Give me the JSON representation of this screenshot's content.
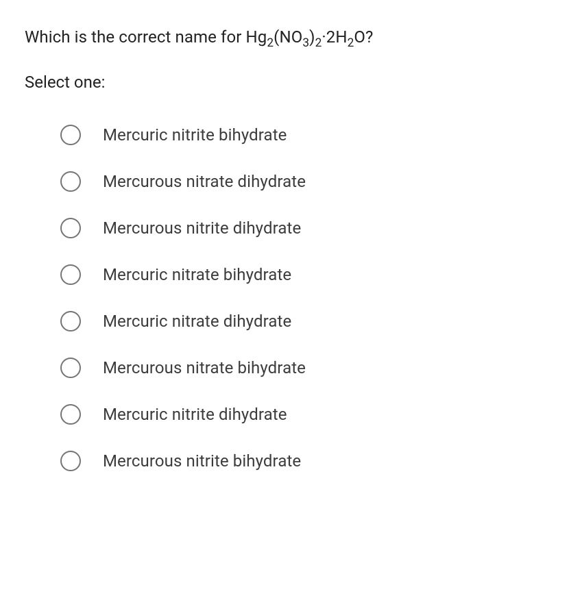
{
  "question": {
    "prefix": "Which is the correct name for ",
    "formula_html": "Hg<sub>2</sub>(NO<sub>3</sub>)<sub>2</sub>·2H<sub>2</sub>O",
    "suffix": "?"
  },
  "select_one_label": "Select one:",
  "options": [
    {
      "label": "Mercuric nitrite bihydrate"
    },
    {
      "label": "Mercurous nitrate dihydrate"
    },
    {
      "label": "Mercurous nitrite dihydrate"
    },
    {
      "label": "Mercuric nitrate bihydrate"
    },
    {
      "label": "Mercuric nitrate dihydrate"
    },
    {
      "label": "Mercurous nitrate bihydrate"
    },
    {
      "label": "Mercuric nitrite dihydrate"
    },
    {
      "label": "Mercurous nitrite bihydrate"
    }
  ],
  "styles": {
    "background_color": "#ffffff",
    "text_color": "#202124",
    "option_text_color": "#3c3c3c",
    "radio_border_color": "#757575",
    "font_family": "Roboto, Arial, sans-serif",
    "question_fontsize": 24,
    "option_fontsize": 24,
    "radio_size": 30,
    "radio_border_width": 2.5,
    "option_spacing": 38
  }
}
